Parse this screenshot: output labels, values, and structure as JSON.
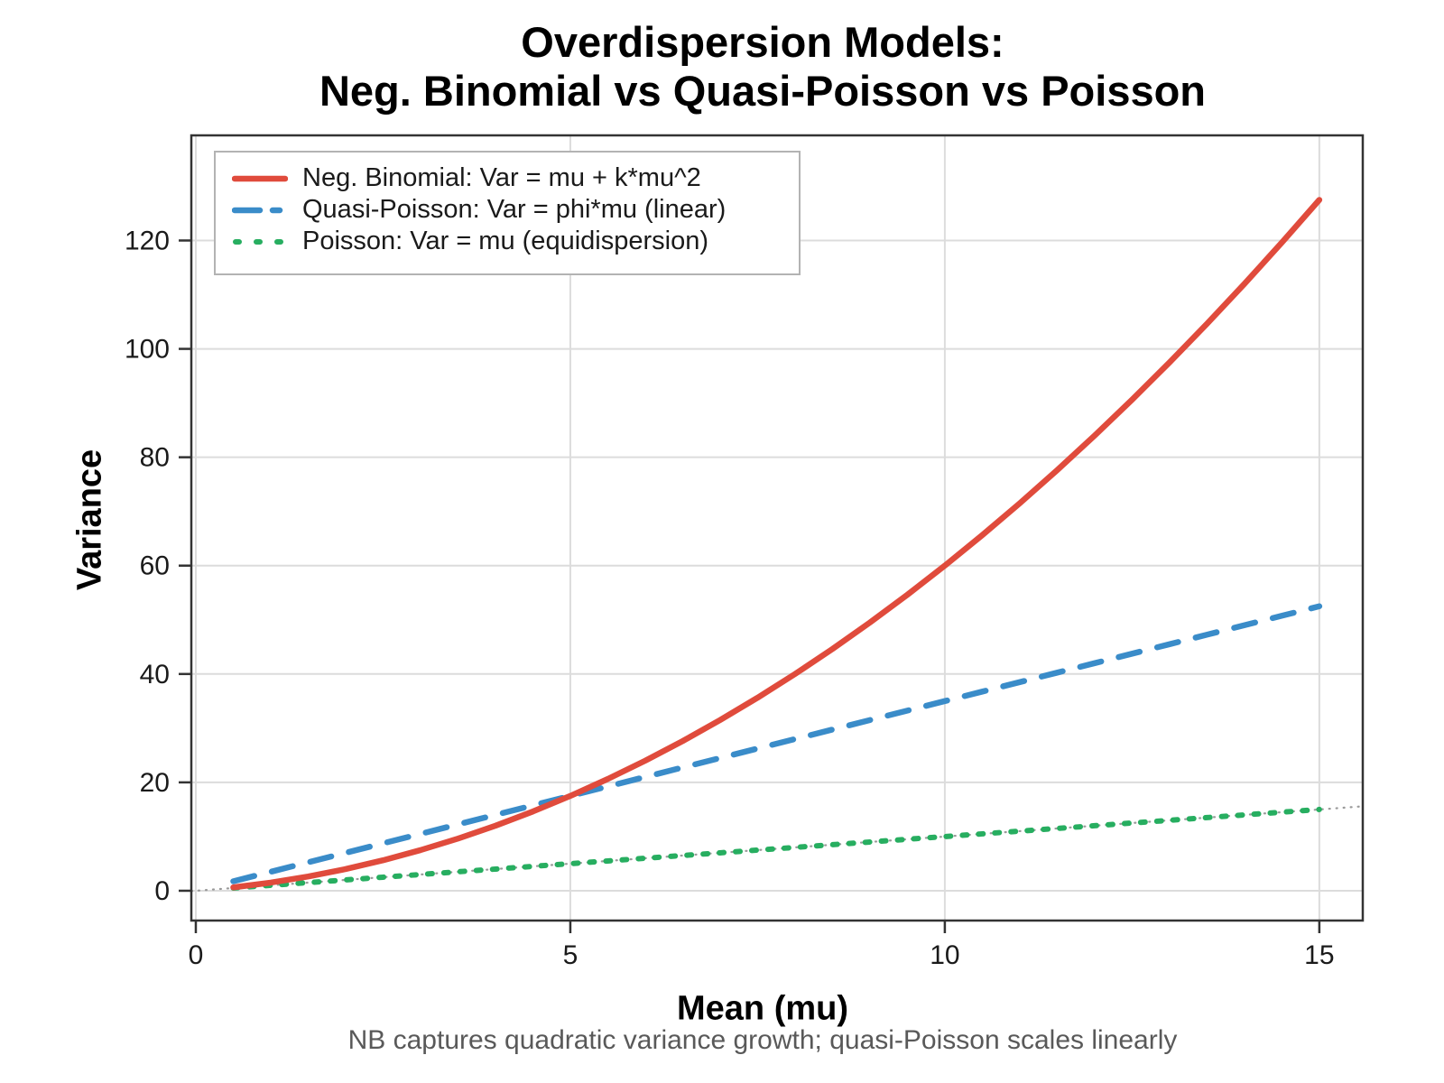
{
  "title": {
    "line1": "Overdispersion Models:",
    "line2": "Neg. Binomial vs Quasi-Poisson vs Poisson"
  },
  "axes": {
    "x_label": "Mean (mu)",
    "y_label": "Variance"
  },
  "caption": "NB captures quadratic variance growth; quasi-Poisson scales linearly",
  "legend": {
    "items": [
      {
        "label": "Neg. Binomial: Var = mu + k*mu^2",
        "color": "#e04b3c",
        "style": "solid"
      },
      {
        "label": "Quasi-Poisson: Var = phi*mu (linear)",
        "color": "#3a8cc9",
        "style": "dashed"
      },
      {
        "label": "Poisson: Var = mu (equidispersion)",
        "color": "#27ae60",
        "style": "dotted"
      }
    ]
  },
  "colors": {
    "neg_binomial": "#e04b3c",
    "quasi_poisson": "#3a8cc9",
    "poisson": "#27ae60",
    "reference_line": "#9a9a9a",
    "gridline": "#dcdcdc",
    "spine": "#333333",
    "tick_label": "#1a1a1a",
    "caption": "#595959"
  },
  "chart_data": {
    "type": "line",
    "title": "Overdispersion Models: Neg. Binomial vs Quasi-Poisson vs Poisson",
    "xlabel": "Mean (mu)",
    "ylabel": "Variance",
    "x_ticks": [
      0,
      5,
      10,
      15
    ],
    "y_ticks": [
      0,
      20,
      40,
      60,
      80,
      100,
      120
    ],
    "x_domain": [
      -0.06,
      15.58
    ],
    "y_domain": [
      -5.5,
      139.4
    ],
    "grid": true,
    "legend_position": "top-left",
    "params": {
      "k": 0.5,
      "phi": 3.5
    },
    "x": [
      0.5,
      1,
      1.5,
      2,
      2.5,
      3,
      3.5,
      4,
      4.5,
      5,
      5.5,
      6,
      6.5,
      7,
      7.5,
      8,
      8.5,
      9,
      9.5,
      10,
      10.5,
      11,
      11.5,
      12,
      12.5,
      13,
      13.5,
      14,
      14.5,
      15
    ],
    "series": [
      {
        "name": "Neg. Binomial: Var = mu + k*mu^2",
        "color": "#e04b3c",
        "style": "solid",
        "width": 6.5,
        "values": [
          0.625,
          1.5,
          2.625,
          4,
          5.625,
          7.5,
          9.625,
          12,
          14.625,
          17.5,
          20.625,
          24,
          27.625,
          31.5,
          35.625,
          40,
          44.625,
          49.5,
          54.625,
          60,
          65.625,
          71.5,
          77.625,
          84,
          90.625,
          97.5,
          104.625,
          112,
          119.625,
          127.5
        ]
      },
      {
        "name": "Quasi-Poisson: Var = phi*mu (linear)",
        "color": "#3a8cc9",
        "style": "dashed",
        "width": 6.5,
        "values": [
          1.75,
          3.5,
          5.25,
          7,
          8.75,
          10.5,
          12.25,
          14,
          15.75,
          17.5,
          19.25,
          21,
          22.75,
          24.5,
          26.25,
          28,
          29.75,
          31.5,
          33.25,
          35,
          36.75,
          38.5,
          40.25,
          42,
          43.75,
          45.5,
          47.25,
          49,
          50.75,
          52.5
        ]
      },
      {
        "name": "Poisson: Var = mu (equidispersion)",
        "color": "#27ae60",
        "style": "dotted",
        "width": 6,
        "values": [
          0.5,
          1,
          1.5,
          2,
          2.5,
          3,
          3.5,
          4,
          4.5,
          5,
          5.5,
          6,
          6.5,
          7,
          7.5,
          8,
          8.5,
          9,
          9.5,
          10,
          10.5,
          11,
          11.5,
          12,
          12.5,
          13,
          13.5,
          14,
          14.5,
          15
        ]
      }
    ],
    "reference_line": {
      "name": "identity Var = mu",
      "color": "#9a9a9a",
      "style": "fine-dotted",
      "x": [
        -0.06,
        15.58
      ],
      "y": [
        -0.06,
        15.58
      ]
    }
  }
}
